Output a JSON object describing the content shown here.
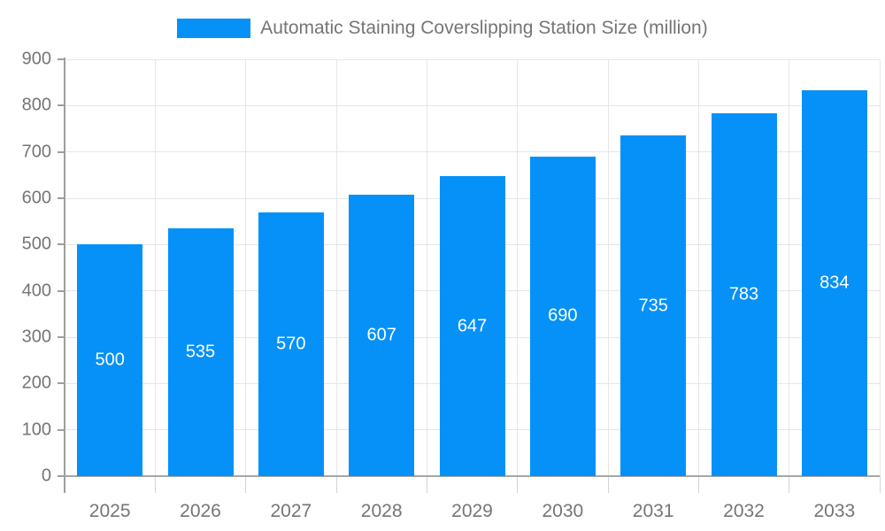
{
  "chart_data": {
    "type": "bar",
    "title": "Automatic Staining Coverslipping Station Size (million)",
    "categories": [
      "2025",
      "2026",
      "2027",
      "2028",
      "2029",
      "2030",
      "2031",
      "2032",
      "2033"
    ],
    "values": [
      500,
      535,
      570,
      607,
      647,
      690,
      735,
      783,
      834
    ],
    "xlabel": "",
    "ylabel": "",
    "ylim": [
      0,
      900
    ],
    "ytick_step": 100,
    "ytick_labels": [
      "0",
      "100",
      "200",
      "300",
      "400",
      "500",
      "600",
      "700",
      "800",
      "900"
    ],
    "grid": true,
    "legend_position": "top-center",
    "bar_labels_inside": true,
    "colors": {
      "bar": "#0591f8",
      "bar_label_text": "#ffffff",
      "axis_text": "#757575",
      "gridline": "#e6e6e6",
      "axis_line": "#a0a0a0",
      "background": "#ffffff"
    }
  }
}
